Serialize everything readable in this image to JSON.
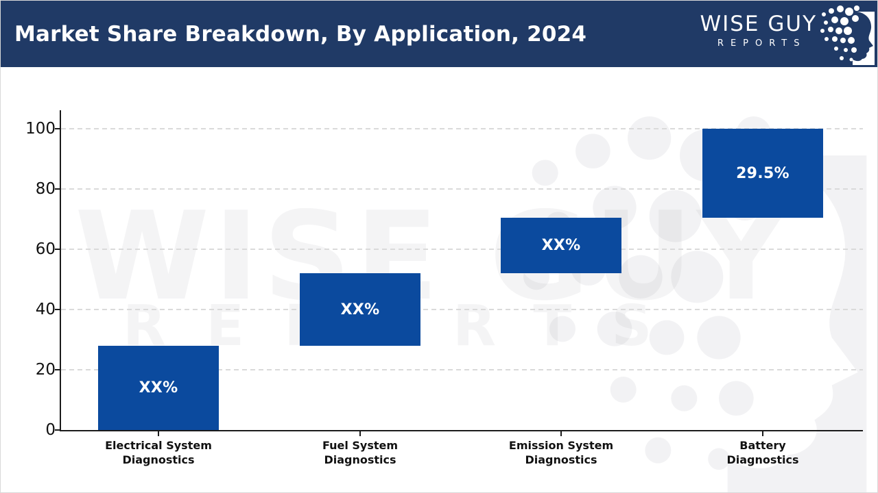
{
  "header": {
    "title": "Market Share Breakdown, By Application, 2024",
    "logo": {
      "primary": "WISE GUY",
      "secondary": "REPORTS"
    }
  },
  "watermark": {
    "primary": "WISE GUY",
    "secondary": "REPORTS"
  },
  "chart_data": {
    "type": "bar",
    "subtype": "floating-segment-waterfall",
    "title": "Market Share Breakdown, By Application, 2024",
    "unit": "%",
    "categories": [
      [
        "Electrical System",
        "Diagnostics"
      ],
      [
        "Fuel System",
        "Diagnostics"
      ],
      [
        "Emission System",
        "Diagnostics"
      ],
      [
        "Battery",
        "Diagnostics"
      ]
    ],
    "segments": [
      {
        "category": "Electrical System Diagnostics",
        "start": 0,
        "end": 28,
        "label": "XX%"
      },
      {
        "category": "Fuel System Diagnostics",
        "start": 28,
        "end": 52,
        "label": "XX%"
      },
      {
        "category": "Emission System Diagnostics",
        "start": 52,
        "end": 70.5,
        "label": "XX%"
      },
      {
        "category": "Battery Diagnostics",
        "start": 70.5,
        "end": 100,
        "label": "29.5%"
      }
    ],
    "yticks": [
      0,
      20,
      40,
      60,
      80,
      100
    ],
    "ylim": [
      0,
      106
    ],
    "xlabel": "",
    "ylabel": "",
    "grid": "horizontal-dashed",
    "legend": null,
    "bar_color": "#0b4a9e",
    "value_label_color": "#ffffff"
  },
  "colors": {
    "header_bg": "#203a66",
    "bar": "#0b4a9e",
    "grid": "#dadada",
    "axis": "#1a1a1a",
    "text": "#111111",
    "title_text": "#ffffff",
    "border": "#d9d9d9"
  }
}
